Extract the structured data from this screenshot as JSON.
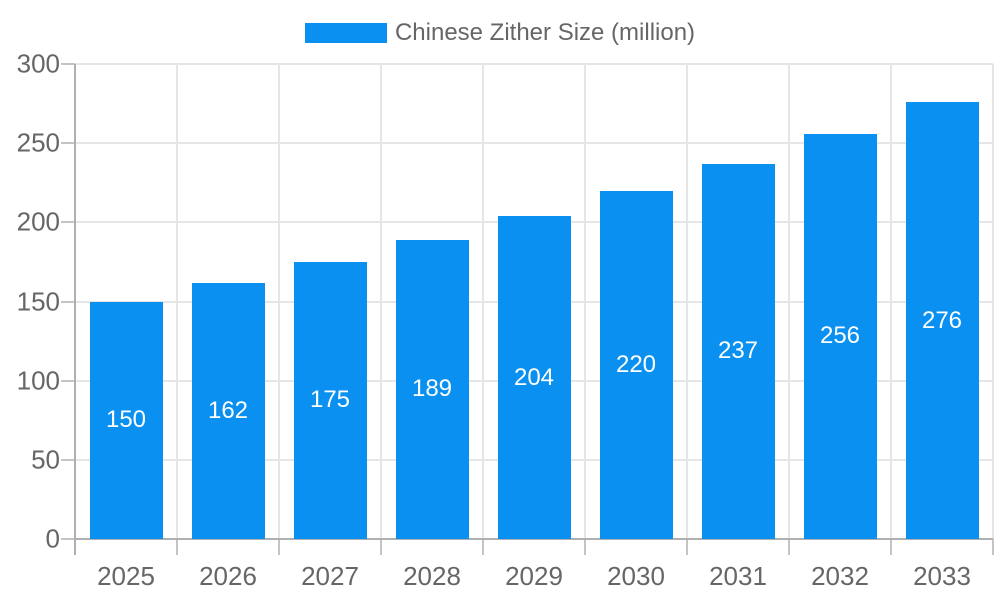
{
  "legend": {
    "label": "Chinese Zither Size (million)"
  },
  "chart_data": {
    "type": "bar",
    "title": "",
    "categories": [
      "2025",
      "2026",
      "2027",
      "2028",
      "2029",
      "2030",
      "2031",
      "2032",
      "2033"
    ],
    "values": [
      150,
      162,
      175,
      189,
      204,
      220,
      237,
      256,
      276
    ],
    "series": [
      {
        "name": "Chinese Zither Size (million)",
        "values": [
          150,
          162,
          175,
          189,
          204,
          220,
          237,
          256,
          276
        ]
      }
    ],
    "xlabel": "",
    "ylabel": "",
    "ylim": [
      0,
      300
    ],
    "yticks": [
      0,
      50,
      100,
      150,
      200,
      250,
      300
    ],
    "grid": true,
    "legend_position": "top-center",
    "value_label_position": "inside-center"
  },
  "colors": {
    "bar": "#0a90f0",
    "grid": "#e6e6e6",
    "axis_line": "#b0b0b0",
    "tick_mark": "#c4c4c4",
    "axis_text": "#666666",
    "legend_text": "#666666",
    "value_label_text": "#ffffff",
    "background": "#ffffff"
  }
}
